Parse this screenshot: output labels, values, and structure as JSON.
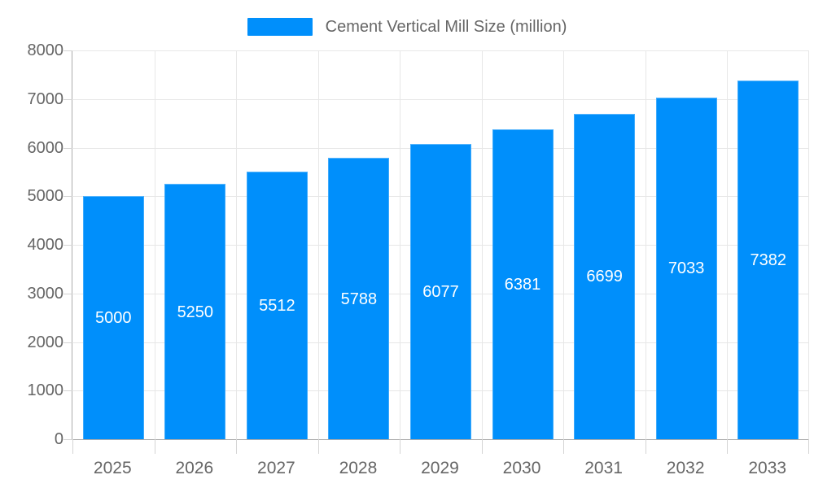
{
  "legend": {
    "label": "Cement Vertical Mill Size (million)",
    "swatch_color": "#008ffb"
  },
  "chart_data": {
    "type": "bar",
    "title": "Cement Vertical Mill Size (million)",
    "categories": [
      "2025",
      "2026",
      "2027",
      "2028",
      "2029",
      "2030",
      "2031",
      "2032",
      "2033"
    ],
    "values": [
      5000,
      5250,
      5512,
      5788,
      6077,
      6381,
      6699,
      7033,
      7382
    ],
    "xlabel": "",
    "ylabel": "",
    "ylim": [
      0,
      8000
    ],
    "ytick_step": 1000,
    "ytick_labels": [
      "0",
      "1000",
      "2000",
      "3000",
      "4000",
      "5000",
      "6000",
      "7000",
      "8000"
    ],
    "grid": true,
    "legend_position": "top",
    "bar_color": "#008ffb",
    "value_label_color": "#ffffff",
    "axis_text_color": "#666666",
    "gridline_color": "#e7e7e7",
    "axis_line_color": "#ababab"
  }
}
